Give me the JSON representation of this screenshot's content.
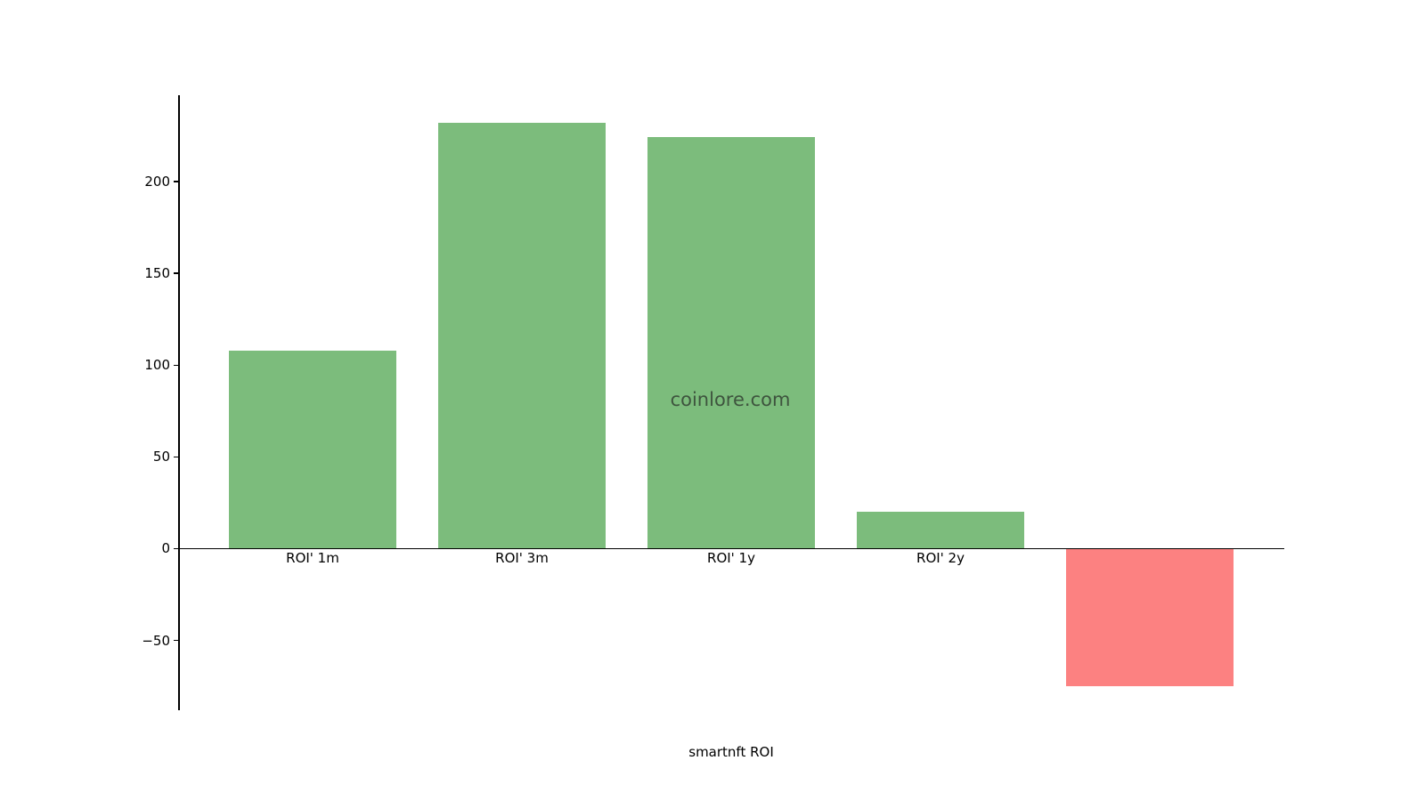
{
  "figure": {
    "background": "#ffffff",
    "axis_color": "#000000"
  },
  "chart_data": {
    "type": "bar",
    "title": "",
    "xlabel": "smartnft ROI",
    "ylabel": "",
    "categories": [
      "ROI' 1m",
      "ROI' 3m",
      "ROI' 1y",
      "ROI' 2y",
      ""
    ],
    "values": [
      108,
      232,
      224,
      20,
      -75
    ],
    "ylim": [
      -88,
      247
    ],
    "ytick_values": [
      -50,
      0,
      50,
      100,
      150,
      200
    ],
    "ytick_labels": [
      "−50",
      "0",
      "50",
      "100",
      "150",
      "200"
    ],
    "grid": false,
    "legend": "none",
    "positive_color": "#7cbc7c",
    "negative_color": "#fc8181",
    "watermark": "coinlore.com"
  }
}
